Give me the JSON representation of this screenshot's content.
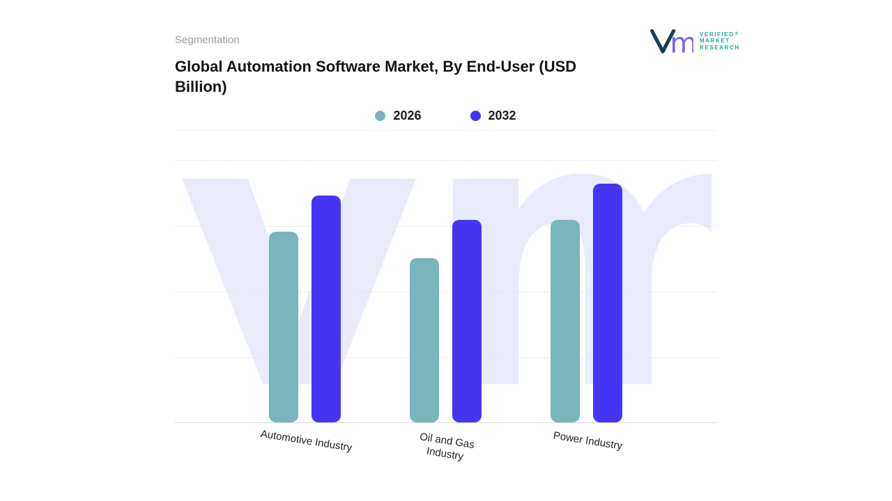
{
  "header": {
    "eyebrow": "Segmentation",
    "title": "Global Automation Software Market, By End-User (USD Billion)"
  },
  "brand": {
    "name_lines": [
      "VERIFIED",
      "MARKET",
      "RESEARCH"
    ],
    "registered_mark": "®",
    "monogram_m": "m",
    "watermark": "vmr",
    "colors": {
      "logo_teal": "#1ba39c",
      "logo_navy": "#1d3c52",
      "logo_purple": "#7a5ff2",
      "watermark_fill": "#e9eafa"
    }
  },
  "chart_data": {
    "type": "bar",
    "title": "Global Automation Software Market, By End-User (USD Billion)",
    "categories": [
      "Automotive Industry",
      "Oil and Gas\nIndustry",
      "Power Industry"
    ],
    "series": [
      {
        "name": "2026",
        "color": "#79b5ba",
        "values": [
          80,
          69,
          85
        ]
      },
      {
        "name": "2032",
        "color": "#4734f2",
        "values": [
          95,
          85,
          100
        ]
      }
    ],
    "xlabel": "",
    "ylabel": "",
    "ylim": [
      0,
      110
    ],
    "grid": "horizontal-dashed",
    "legend_position": "top-center"
  }
}
